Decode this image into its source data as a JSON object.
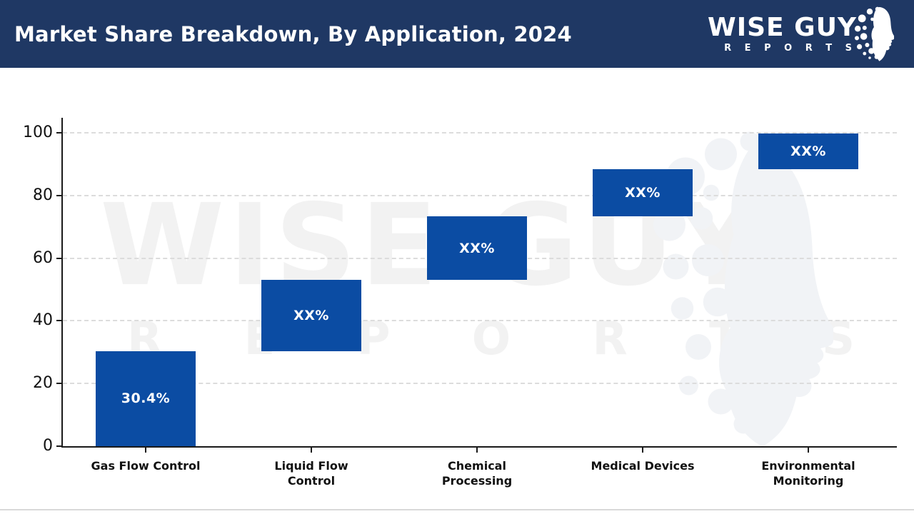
{
  "header": {
    "title": "Market Share Breakdown, By Application, 2024",
    "bg_color": "#1f3864",
    "logo": {
      "brand_line1": "WISE GUY",
      "brand_line2": "R E P O R T S"
    }
  },
  "watermark": {
    "line1": "WISE GUY",
    "line2": "R E P O R T S"
  },
  "chart_data": {
    "type": "bar",
    "subtype": "floating-segment-waterfall",
    "title": "Market Share Breakdown, By Application, 2024",
    "categories": [
      "Gas Flow Control",
      "Liquid Flow\nControl",
      "Chemical\nProcessing",
      "Medical Devices",
      "Environmental\nMonitoring"
    ],
    "segments": [
      {
        "category": "Gas Flow Control",
        "start": 0,
        "end": 30.4,
        "label": "30.4%"
      },
      {
        "category": "Liquid Flow Control",
        "start": 30.4,
        "end": 53.0,
        "label": "XX%"
      },
      {
        "category": "Chemical Processing",
        "start": 53.0,
        "end": 73.3,
        "label": "XX%"
      },
      {
        "category": "Medical Devices",
        "start": 73.3,
        "end": 88.3,
        "label": "XX%"
      },
      {
        "category": "Environmental Monitoring",
        "start": 88.3,
        "end": 99.7,
        "label": "XX%"
      }
    ],
    "xlabel": "",
    "ylabel": "",
    "yticks": [
      0,
      20,
      40,
      60,
      80,
      100
    ],
    "ylim": [
      0,
      104.8
    ],
    "grid": "horizontal-dashed",
    "legend": "none",
    "bar_color": "#0b4ca3",
    "bar_label_color": "#ffffff",
    "axis_color": "#1a1a1a",
    "gridline_color": "#dcdcdc"
  }
}
